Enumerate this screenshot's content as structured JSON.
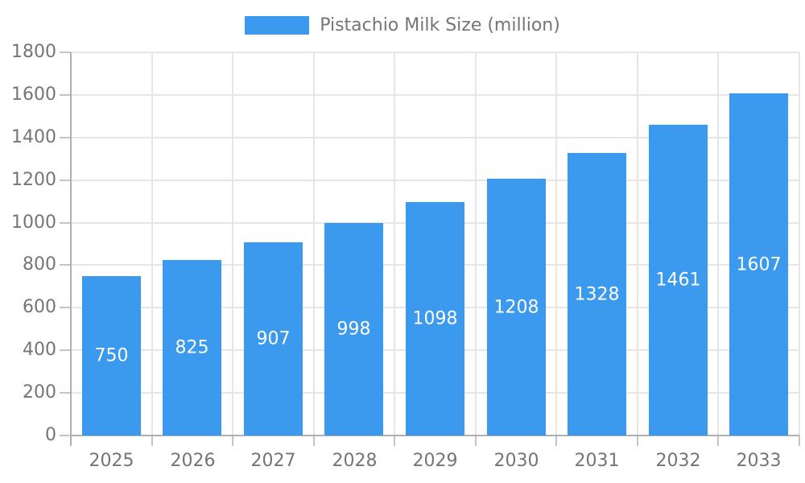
{
  "chart_data": {
    "type": "bar",
    "title": "Pistachio Milk Size (million)",
    "categories": [
      "2025",
      "2026",
      "2027",
      "2028",
      "2029",
      "2030",
      "2031",
      "2032",
      "2033"
    ],
    "values": [
      750,
      825,
      907,
      998,
      1098,
      1208,
      1328,
      1461,
      1607
    ],
    "value_labels": [
      "750",
      "825",
      "907",
      "998",
      "1098",
      "1208",
      "1328",
      "1461",
      "1607"
    ],
    "xlabel": "",
    "ylabel": "",
    "ylim": [
      0,
      1800
    ],
    "ytick_step": 200,
    "ytick_labels": [
      "0",
      "200",
      "400",
      "600",
      "800",
      "1000",
      "1200",
      "1400",
      "1600",
      "1800"
    ],
    "grid": "on",
    "legend_position": "top-center",
    "colors": {
      "bar": "#3b99ee",
      "grid": "#e6e6e6",
      "axis": "#b0b0b0",
      "tick": "#c4c4c4",
      "text": "#757575",
      "value_label": "#ffffff",
      "background": "#ffffff"
    }
  }
}
